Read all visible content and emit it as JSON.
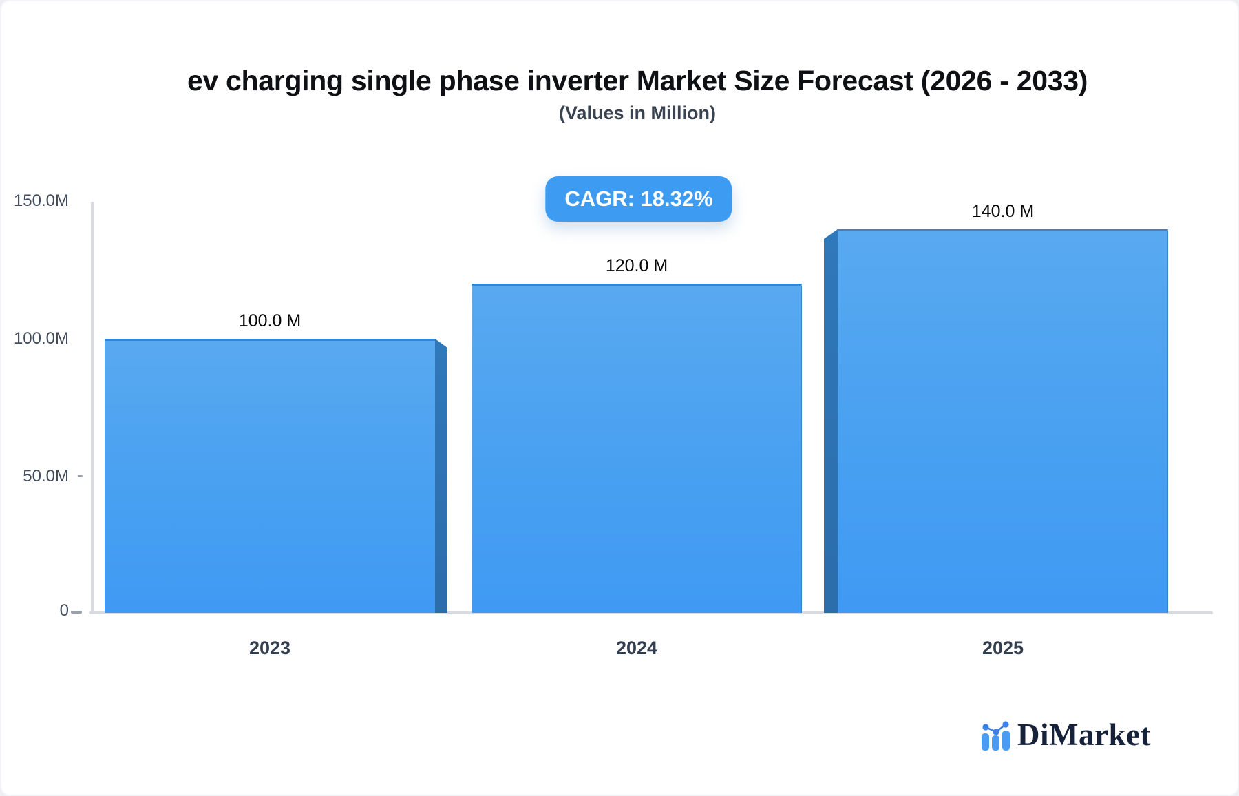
{
  "header": {
    "cagr_badge": "CAGR: 18.32%"
  },
  "watermark": {
    "brand": "DiMarket"
  },
  "chart_data": {
    "type": "bar",
    "title": "ev charging single phase inverter Market Size Forecast (2026 - 2033)",
    "subtitle": "(Values in Million)",
    "categories": [
      "2023",
      "2024",
      "2025"
    ],
    "values": [
      100,
      120,
      140
    ],
    "unit": "Million",
    "bar_labels": [
      "100.0 M",
      "120.0 M",
      "140.0 M"
    ],
    "y_ticks": [
      "150.0M",
      "100.0M",
      "50.0M",
      "0"
    ],
    "ylim": [
      0,
      150
    ],
    "grid": false,
    "legend": false,
    "xlabel": "",
    "ylabel": "",
    "bar_color_top": "#58a9f0",
    "bar_color_bottom": "#3f9af3",
    "bar_side_color": "#2e74b4",
    "badge_color": "#3d9bf1",
    "cagr_value": "18.32%"
  }
}
